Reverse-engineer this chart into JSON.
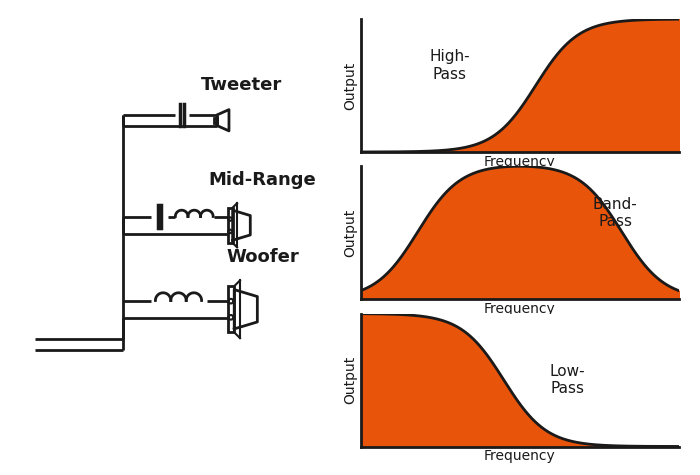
{
  "bg_color": "#ffffff",
  "line_color": "#1a1a1a",
  "fill_color": "#e8540a",
  "title_font_size": 13,
  "label_font_size": 11,
  "axis_label_font_size": 10,
  "labels": {
    "tweeter": "Tweeter",
    "midrange": "Mid-Range",
    "woofer": "Woofer",
    "high_pass": "High-\nPass",
    "band_pass": "Band-\nPass",
    "low_pass": "Low-\nPass",
    "frequency": "Frequency",
    "output": "Output"
  }
}
